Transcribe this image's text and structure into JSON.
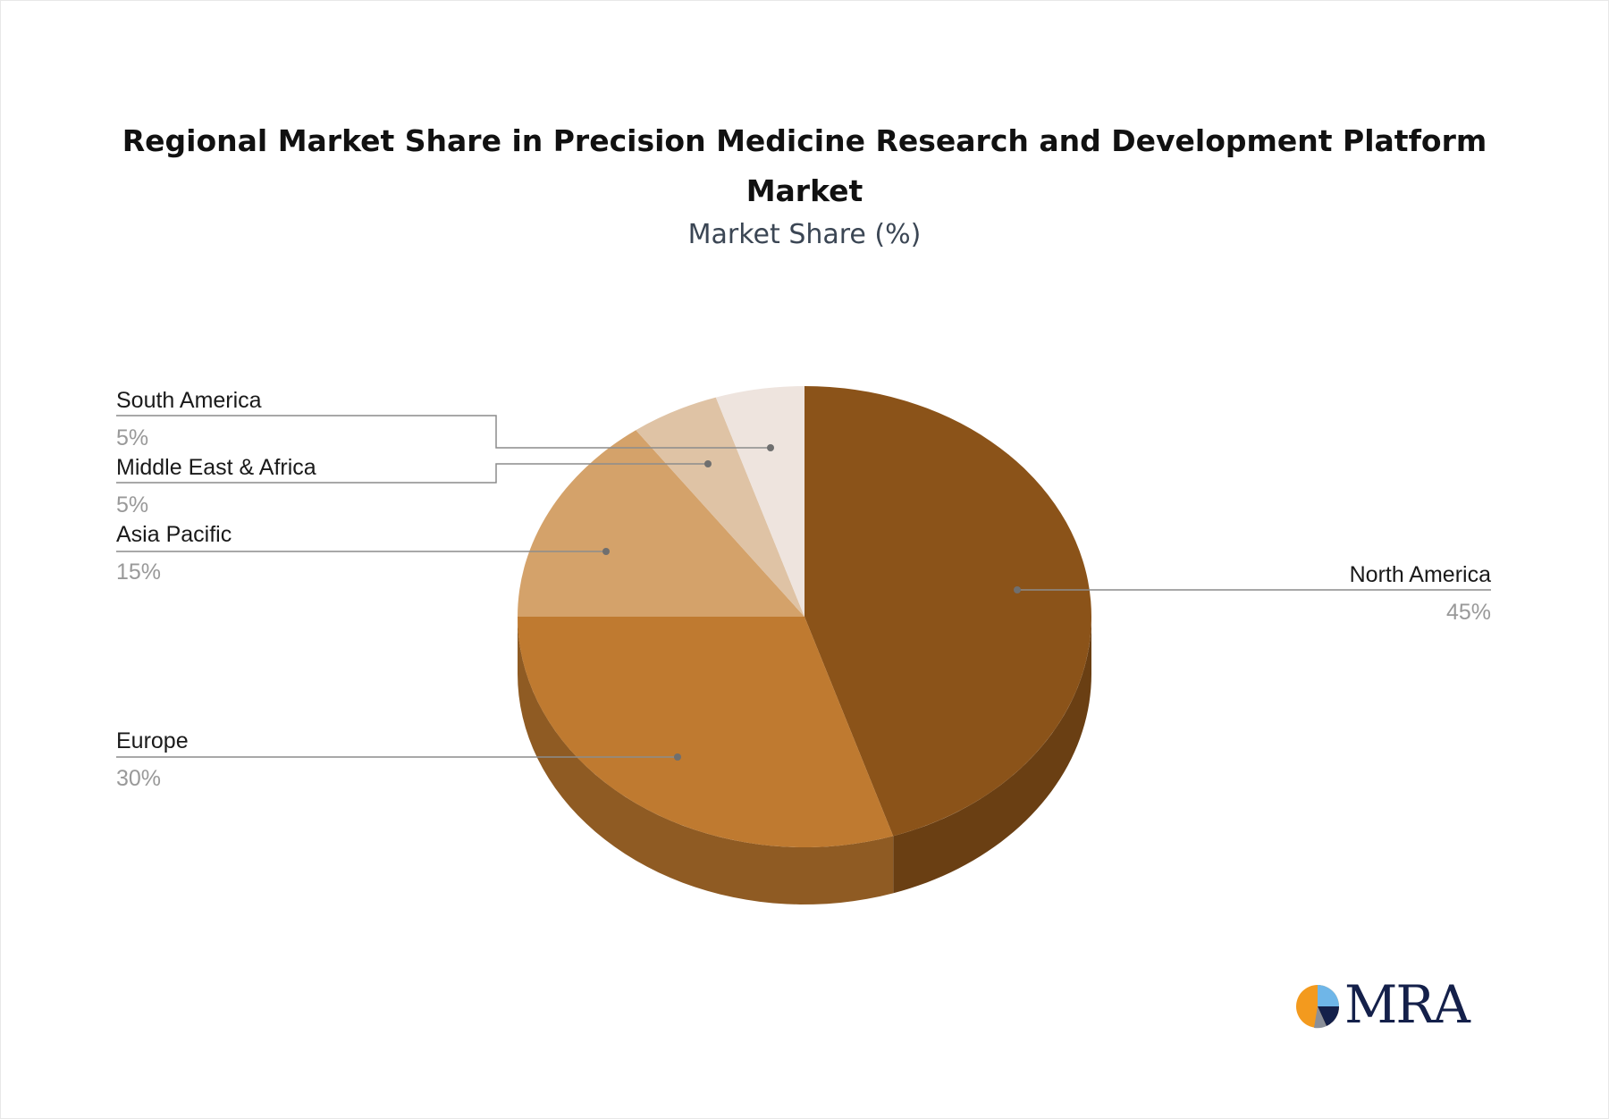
{
  "chart_data": {
    "type": "pie",
    "title_lines": [
      "Regional Market Share in Precision Medicine Research and Development Platform",
      "Market"
    ],
    "subtitle": "Market Share (%)",
    "slices": [
      {
        "name": "North America",
        "value": 45,
        "label": "45%",
        "color": "#8B5319",
        "side_color": "#6A3F13"
      },
      {
        "name": "Europe",
        "value": 30,
        "label": "30%",
        "color": "#BF7A30",
        "side_color": "#8F5B23"
      },
      {
        "name": "Asia Pacific",
        "value": 15,
        "label": "15%",
        "color": "#D4A26A",
        "side_color": "#A67D50"
      },
      {
        "name": "Middle East & Africa",
        "value": 5,
        "label": "5%",
        "color": "#DFC3A5",
        "side_color": "#B29C84"
      },
      {
        "name": "South America",
        "value": 5,
        "label": "5%",
        "color": "#EEE4DE",
        "side_color": "#C4BBB5"
      }
    ],
    "legend": "callout-labels"
  },
  "logo": {
    "text": "MRA",
    "colors": [
      "#F39A1E",
      "#6FB6E8",
      "#14204A",
      "#8A8F99"
    ]
  }
}
